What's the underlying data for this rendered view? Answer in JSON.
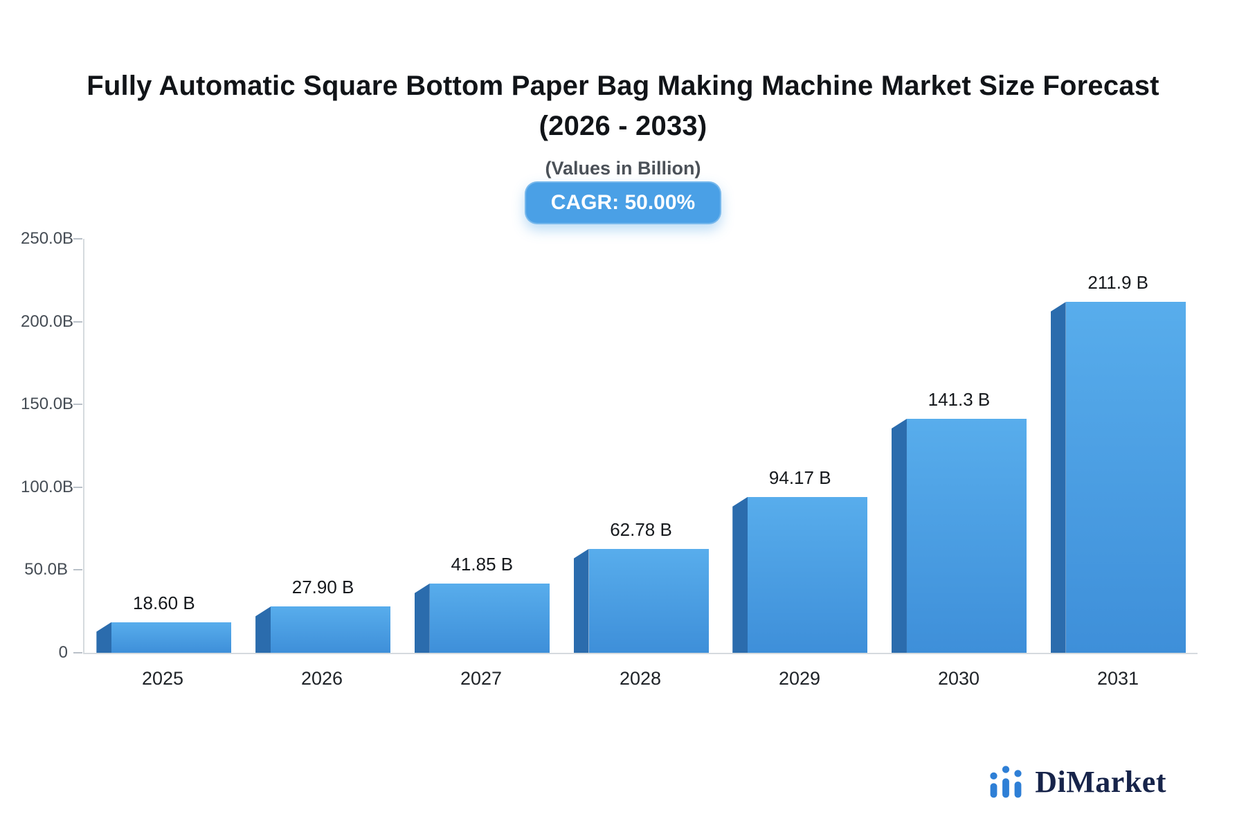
{
  "chart_data": {
    "type": "bar",
    "title_line1": "Fully Automatic Square Bottom Paper Bag Making Machine Market Size Forecast",
    "title_line2": "(2026 - 2033)",
    "subtitle": "(Values in Billion)",
    "badge": "CAGR: 50.00%",
    "categories": [
      "2025",
      "2026",
      "2027",
      "2028",
      "2029",
      "2030",
      "2031"
    ],
    "values": [
      18.6,
      27.9,
      41.85,
      62.78,
      94.17,
      141.3,
      211.9
    ],
    "value_labels": [
      "18.60 B",
      "27.90 B",
      "41.85 B",
      "62.78 B",
      "94.17 B",
      "141.3 B",
      "211.9 B"
    ],
    "xlabel": "",
    "ylabel": "",
    "ylim": [
      0,
      250
    ],
    "yticks": [
      0,
      50,
      100,
      150,
      200,
      250
    ],
    "ytick_labels": [
      "0",
      "50.0B",
      "100.0B",
      "150.0B",
      "200.0B",
      "250.0B"
    ],
    "grid": false,
    "legend": "none",
    "bar_gradient_top": "#58ADEC",
    "bar_gradient_bottom": "#3E8FD9",
    "bar_side_color": "#2B6CAD",
    "badge_color": "#4AA0E6",
    "axis_color": "#d5dade"
  },
  "branding": {
    "logo_text": "DiMarket",
    "logo_icon": "bar-chart-dots-icon",
    "logo_color": "#2e7fd6"
  }
}
